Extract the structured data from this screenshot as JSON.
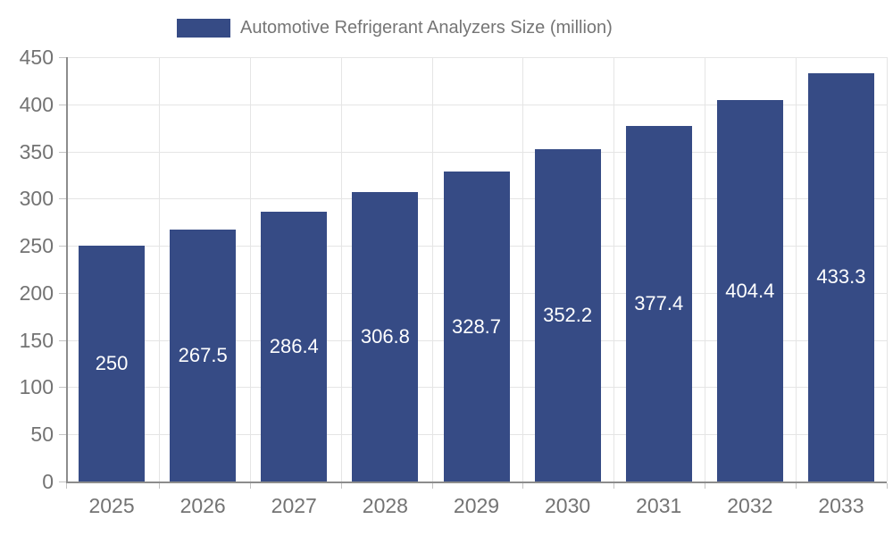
{
  "legend": {
    "label": "Automotive Refrigerant Analyzers Size (million)"
  },
  "chart_data": {
    "type": "bar",
    "title": "Automotive Refrigerant Analyzers Size (million)",
    "categories": [
      "2025",
      "2026",
      "2027",
      "2028",
      "2029",
      "2030",
      "2031",
      "2032",
      "2033"
    ],
    "values": [
      250,
      267.5,
      286.4,
      306.8,
      328.7,
      352.2,
      377.4,
      404.4,
      433.3
    ],
    "value_labels": [
      "250",
      "267.5",
      "286.4",
      "306.8",
      "328.7",
      "352.2",
      "377.4",
      "404.4",
      "433.3"
    ],
    "xlabel": "",
    "ylabel": "",
    "ylim": [
      0,
      450
    ],
    "ytick_step": 50,
    "ytick_labels": [
      "0",
      "50",
      "100",
      "150",
      "200",
      "250",
      "300",
      "350",
      "400",
      "450"
    ],
    "grid": true,
    "legend_position": "top",
    "colors": {
      "bar": "#364B85",
      "bar_label": "#FFFFFF",
      "axis_text": "#737373",
      "legend_text": "#757575",
      "grid_line": "#E5E5E5",
      "axis_line": "#8C8C8C",
      "tick_mark": "#C4C4C4",
      "background": "#FFFFFF"
    }
  }
}
